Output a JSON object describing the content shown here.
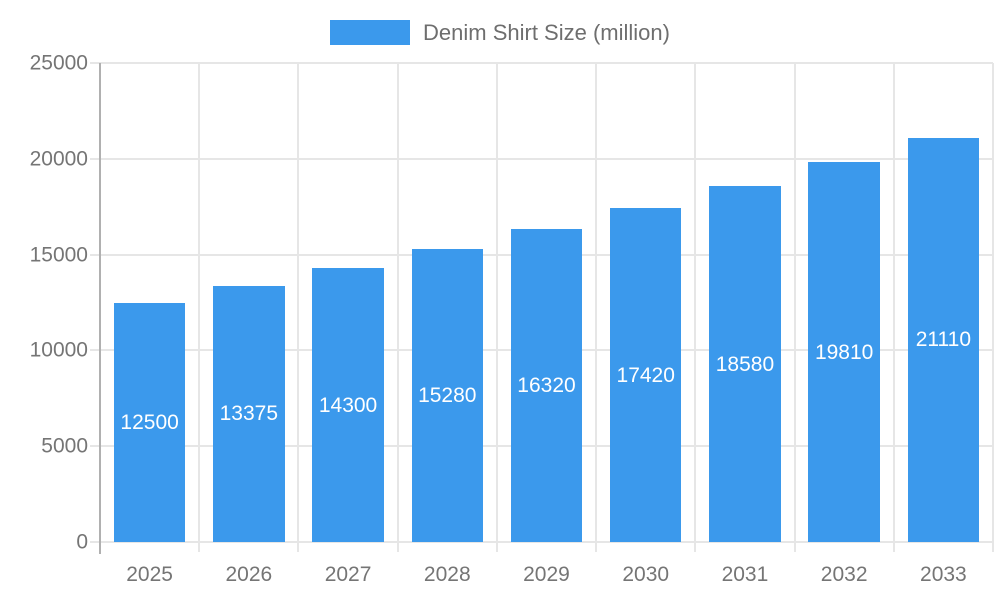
{
  "chart_data": {
    "type": "bar",
    "title": "Denim Shirt Size (million)",
    "legend_position": "top-center",
    "categories": [
      "2025",
      "2026",
      "2027",
      "2028",
      "2029",
      "2030",
      "2031",
      "2032",
      "2033"
    ],
    "series": [
      {
        "name": "Denim Shirt Size (million)",
        "values": [
          12500,
          13375,
          14300,
          15280,
          16320,
          17420,
          18580,
          19810,
          21110
        ]
      }
    ],
    "bar_labels": [
      "12500",
      "13375",
      "14300",
      "15280",
      "16320",
      "17420",
      "18580",
      "19810",
      "21110"
    ],
    "xlabel": "",
    "ylabel": "",
    "ylim": [
      0,
      25000
    ],
    "y_ticks": [
      "25000",
      "20000",
      "15000",
      "10000",
      "5000",
      "0"
    ],
    "grid": "horizontal and vertical gridlines visible",
    "colors": {
      "bar": "#3b99ec",
      "bar_label": "#ffffff",
      "axis_text": "#757575",
      "legend_text": "#6e6e6e",
      "grid": "#e6e6e6",
      "axis_line": "#b0b0b0",
      "background": "#ffffff"
    }
  }
}
